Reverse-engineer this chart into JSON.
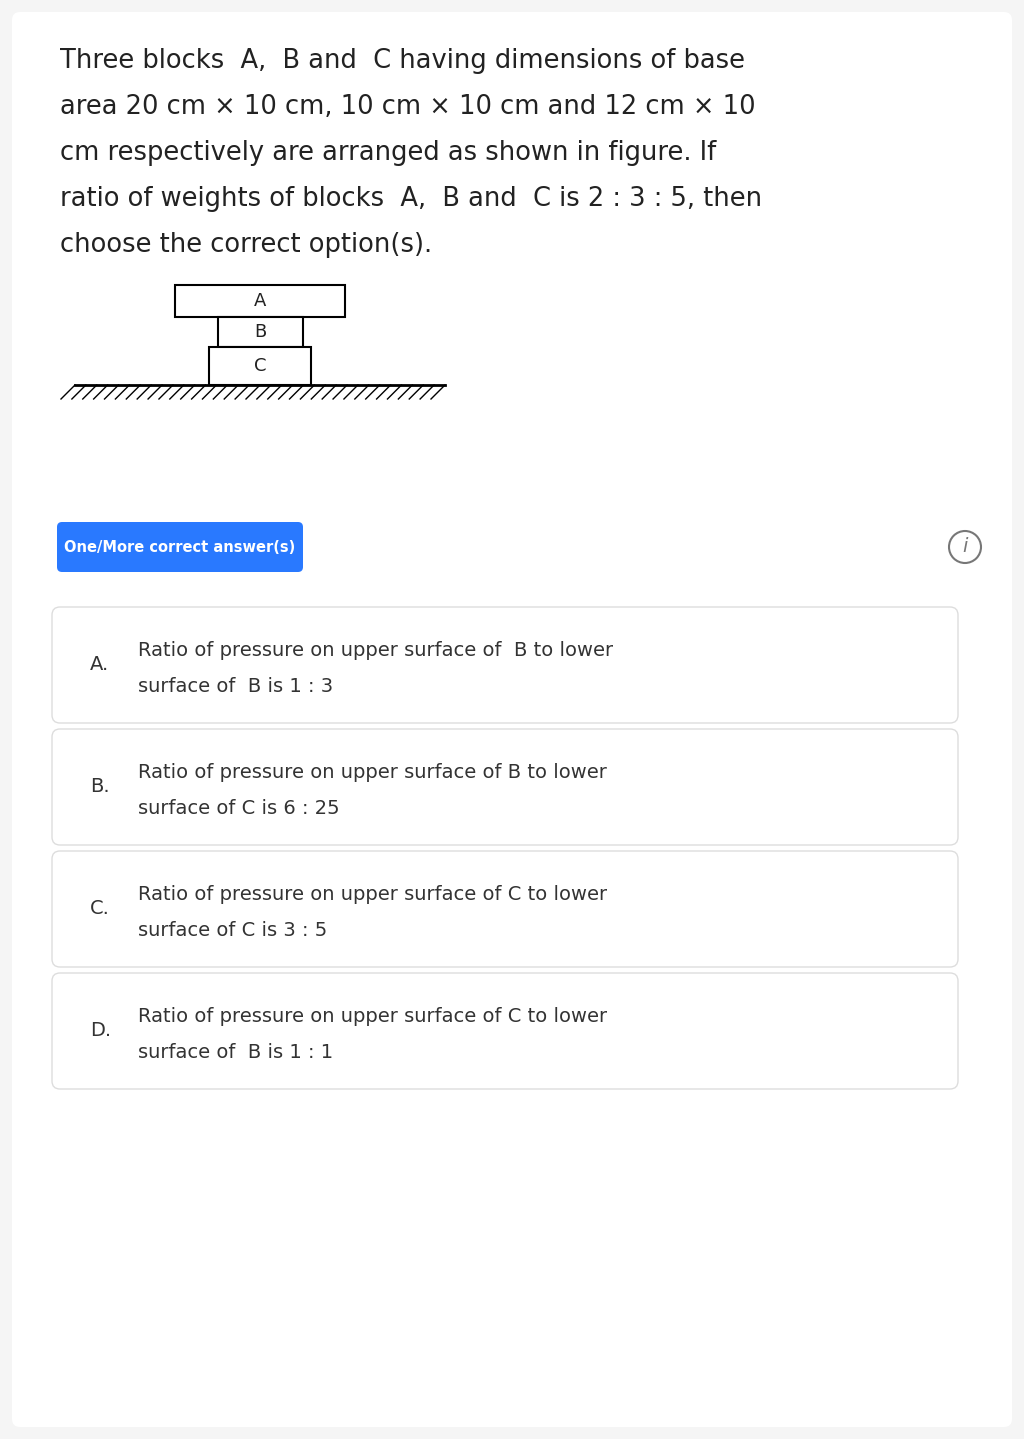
{
  "background_color": "#f5f5f5",
  "content_bg": "#ffffff",
  "question_lines": [
    "Three blocks  A,  B and  C having dimensions of base",
    "area 20 cm × 10 cm, 10 cm × 10 cm and 12 cm × 10",
    "cm respectively are arranged as shown in figure. If",
    "ratio of weights of blocks  A,  B and  C is 2 : 3 : 5, then",
    "choose the correct option(s)."
  ],
  "button_text": "One/More correct answer(s)",
  "button_color": "#2979FF",
  "button_text_color": "#ffffff",
  "options": [
    {
      "label": "A.",
      "line1": "Ratio of pressure on upper surface of  B to lower",
      "line2": "surface of  B is 1 : 3"
    },
    {
      "label": "B.",
      "line1": "Ratio of pressure on upper surface of B to lower",
      "line2": "surface of C is 6 : 25"
    },
    {
      "label": "C.",
      "line1": "Ratio of pressure on upper surface of C to lower",
      "line2": "surface of C is 3 : 5"
    },
    {
      "label": "D.",
      "line1": "Ratio of pressure on upper surface of C to lower",
      "line2": "surface of  B is 1 : 1"
    }
  ],
  "block_labels": [
    "A",
    "B",
    "C"
  ],
  "block_edge_color": "#000000",
  "block_face_color": "#ffffff",
  "text_color": "#222222",
  "option_text_color": "#333333",
  "option_border_color": "#dddddd",
  "ground_color": "#000000"
}
